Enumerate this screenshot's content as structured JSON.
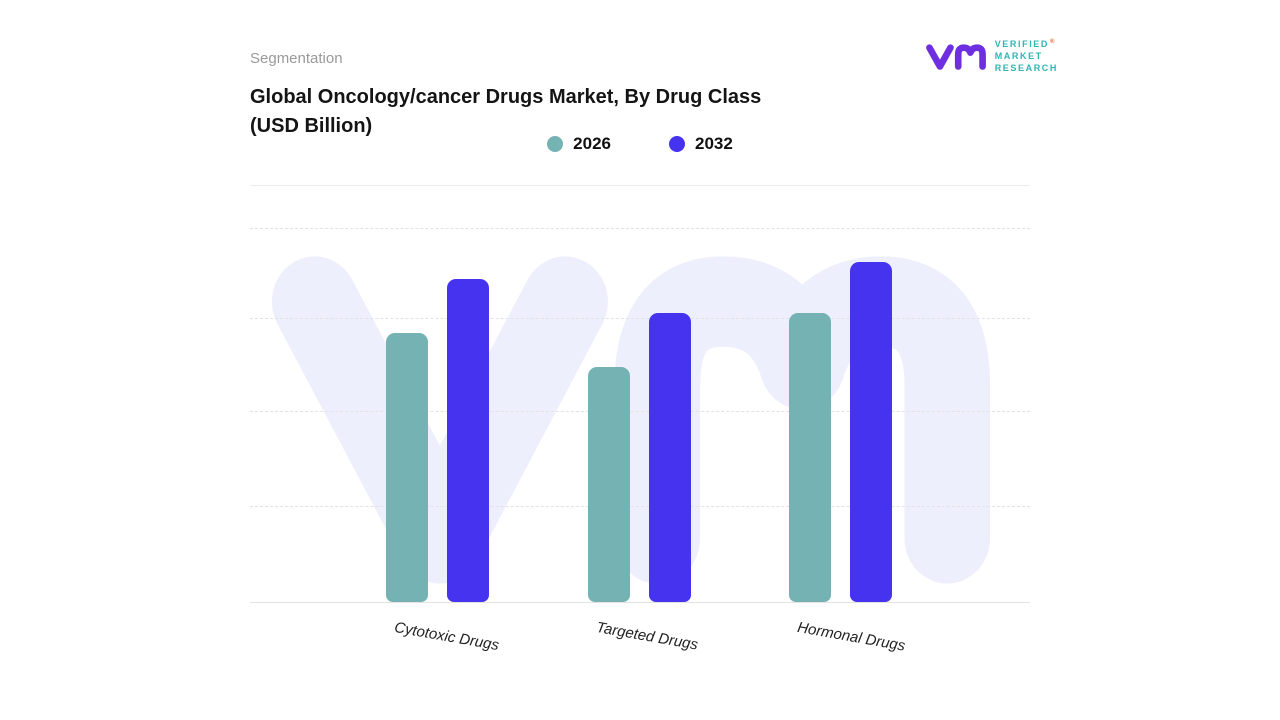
{
  "header": {
    "eyebrow": "Segmentation",
    "title_line1": "Global Oncology/cancer Drugs Market, By Drug Class",
    "title_line2": "(USD Billion)"
  },
  "logo": {
    "line1": "VERIFIED",
    "line2": "MARKET",
    "line3": "RESEARCH",
    "reg": "®",
    "mark_color": "#6d2fe0",
    "text_color": "#2fb5b2",
    "reg_color": "#e8642c"
  },
  "legend": [
    {
      "label": "2026",
      "color": "#74b2b4"
    },
    {
      "label": "2032",
      "color": "#4633f0"
    }
  ],
  "colors": {
    "watermark": "#edeffc",
    "series_2026": "#74b2b4",
    "series_2032": "#4633f0"
  },
  "chart_data": {
    "type": "bar",
    "title": "Global Oncology/cancer Drugs Market, By Drug Class (USD Billion)",
    "categories": [
      "Cytotoxic Drugs",
      "Targeted Drugs",
      "Hormonal Drugs"
    ],
    "series": [
      {
        "name": "2026",
        "color": "#74b2b4",
        "values": [
          79,
          69,
          85
        ]
      },
      {
        "name": "2032",
        "color": "#4633f0",
        "values": [
          95,
          85,
          100
        ]
      }
    ],
    "xlabel": "",
    "ylabel": "",
    "ylim": [
      0,
      100
    ],
    "grid": "dashed-horizontal",
    "legend_position": "top"
  }
}
